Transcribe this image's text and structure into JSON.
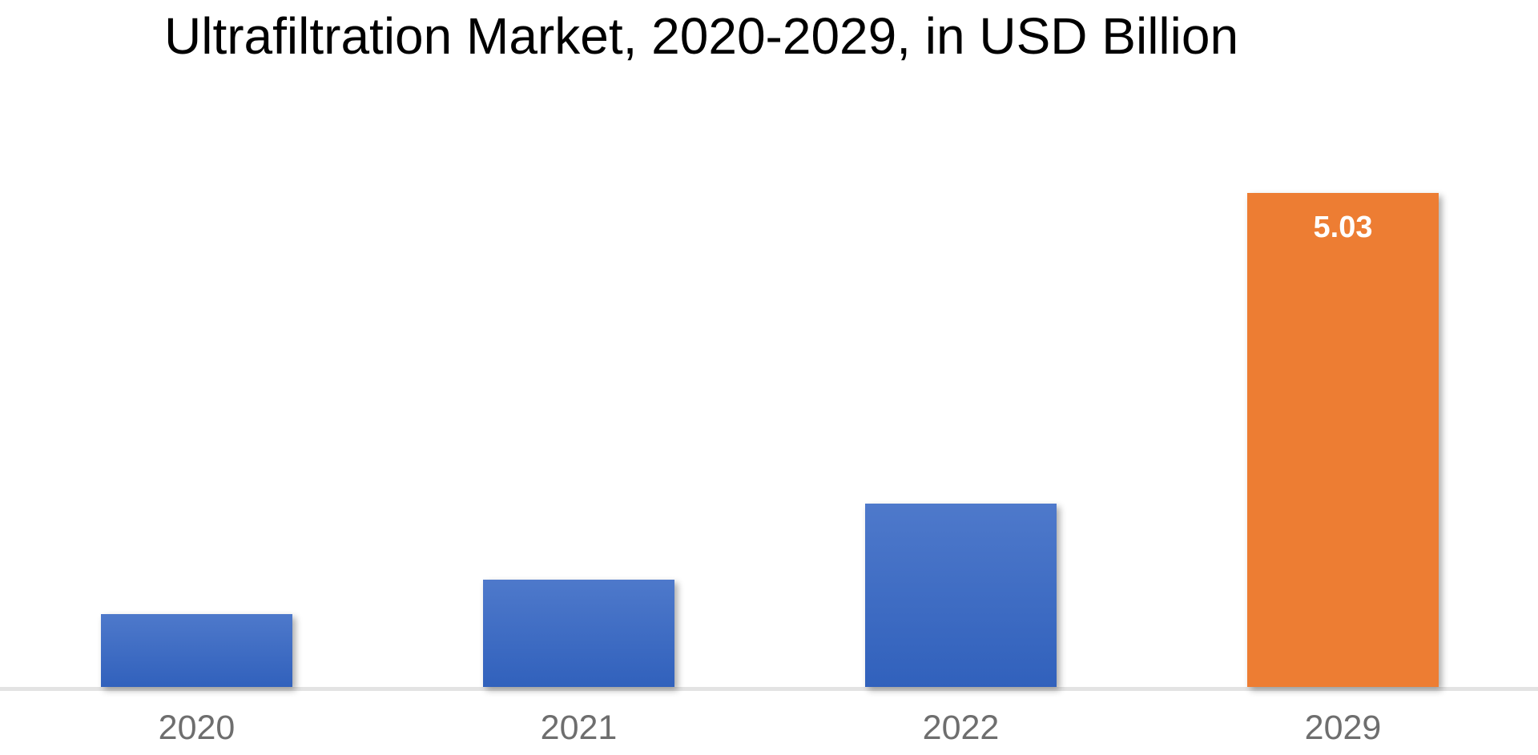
{
  "chart_data": {
    "type": "bar",
    "title": "Ultrafiltration Market, 2020-2029, in USD Billion",
    "categories": [
      "2020",
      "2021",
      "2022",
      "2029"
    ],
    "values": [
      0.74,
      1.09,
      1.87,
      5.03
    ],
    "data_labels": [
      "",
      "",
      "",
      "5.03"
    ],
    "highlight_index": 3,
    "xlabel": "",
    "ylabel": "",
    "ylim": [
      0,
      5.03
    ],
    "y_axis_visible": false,
    "x_axis_visible": true,
    "grid": false,
    "legend": false
  },
  "colors": {
    "background": "#ffffff",
    "title": "#000000",
    "bar_blue_top": "#4e79cb",
    "bar_blue_bottom": "#3161bc",
    "bar_orange": "#ed7d33",
    "axis_line": "#e3e3e3",
    "category_label": "#6e6e6e",
    "value_label": "#ffffff"
  }
}
